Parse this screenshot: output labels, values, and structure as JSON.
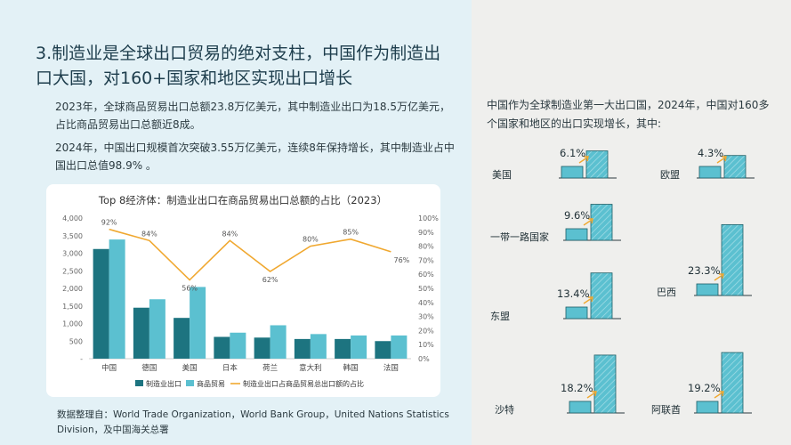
{
  "heading": "3.制造业是全球出口贸易的绝对支柱，中国作为制造出口大国，对160+国家和地区实现出口增长",
  "para1": "2023年，全球商品贸易出口总额23.8万亿美元，其中制造业出口为18.5万亿美元，占比商品贸易出口总额近8成。",
  "para2": "2024年，中国出口规模首次突破3.55万亿美元，连续8年保持增长，其中制造业占中国出口总值98.9% 。",
  "source": "数据整理自：World Trade Organization，World Bank Group，United Nations Statistics Division，及中国海关总署",
  "right_intro": "中国作为全球制造业第一大出口国，2024年，中国对160多个国家和地区的出口实现增长，其中:",
  "colors": {
    "dark_teal": "#1d7480",
    "light_teal": "#5bc0d0",
    "orange": "#f0a830",
    "left_bg": "#e3f1f6",
    "right_bg": "#efefed"
  },
  "chart_data": {
    "type": "bar",
    "title": "Top 8经济体：制造业出口在商品贸易出口总额的占比（2023）",
    "categories": [
      "中国",
      "德国",
      "美国",
      "日本",
      "荷兰",
      "意大利",
      "韩国",
      "法国"
    ],
    "series": [
      {
        "name": "制造业出口",
        "type": "bar",
        "axis": "left",
        "color": "#1d7480",
        "values": [
          3120,
          1450,
          1160,
          620,
          600,
          560,
          560,
          500
        ]
      },
      {
        "name": "商品贸易",
        "type": "bar",
        "axis": "left",
        "color": "#5bc0d0",
        "values": [
          3390,
          1690,
          2040,
          740,
          950,
          700,
          660,
          660
        ]
      },
      {
        "name": "制造业出口占商品贸易总出口额的占比",
        "type": "line",
        "axis": "right",
        "color": "#f0a830",
        "values": [
          92,
          84,
          56,
          84,
          62,
          80,
          85,
          76
        ],
        "labels": [
          "92%",
          "84%",
          "56%",
          "84%",
          "62%",
          "80%",
          "85%",
          "76%"
        ]
      }
    ],
    "left_axis": {
      "ticks": [
        "4,000",
        "3,500",
        "3,000",
        "2,500",
        "2,000",
        "1,500",
        "1,000",
        "500",
        "-"
      ],
      "min": 0,
      "max": 4000
    },
    "right_axis": {
      "ticks": [
        "100%",
        "90%",
        "80%",
        "70%",
        "60%",
        "50%",
        "40%",
        "30%",
        "20%",
        "10%",
        "0%"
      ],
      "min": 0,
      "max": 100
    },
    "legend": "bottom",
    "grid": false
  },
  "growth_panels": [
    {
      "label": "美国",
      "pct": "6.1%",
      "growth": 6.1
    },
    {
      "label": "欧盟",
      "pct": "4.3%",
      "growth": 4.3
    },
    {
      "label": "一带一路国家",
      "pct": "9.6%",
      "growth": 9.6
    },
    {
      "label": "巴西",
      "pct": "23.3%",
      "growth": 23.3
    },
    {
      "label": "东盟",
      "pct": "13.4%",
      "growth": 13.4
    },
    {
      "label": "沙特",
      "pct": "18.2%",
      "growth": 18.2
    },
    {
      "label": "阿联酋",
      "pct": "19.2%",
      "growth": 19.2
    }
  ]
}
